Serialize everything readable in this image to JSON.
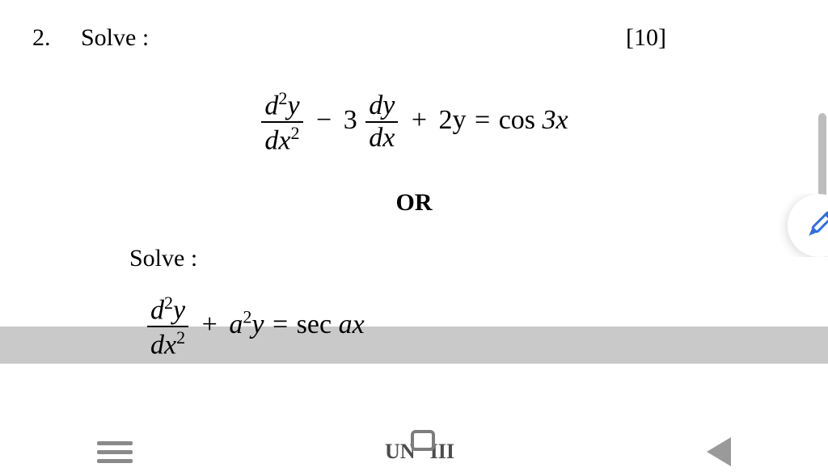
{
  "question": {
    "number": "2.",
    "prompt": "Solve :",
    "marks": "[10]"
  },
  "equation1": {
    "frac1_num_html": "d<span class='sup'>2</span>y",
    "frac1_den_html": "dx<span class='sup'>2</span>",
    "minus": "−",
    "coeff3": "3",
    "frac2_num": "dy",
    "frac2_den": "dx",
    "plus": "+",
    "term2y": "2y",
    "eq": "=",
    "rhs_html": "<span class='upright'>cos</span> 3x"
  },
  "or_label": "OR",
  "prompt2": "Solve :",
  "equation2": {
    "frac1_num_html": "d<span class='sup'>2</span>y",
    "frac1_den_html": "dx<span class='sup'>2</span>",
    "plus": "+",
    "term_html": "a<span class='sup'>2</span>y",
    "eq": "=",
    "rhs_html": "<span class='upright'>sec</span> ax"
  },
  "footer": {
    "unit_left": "UN",
    "unit_right": "III"
  },
  "colors": {
    "text": "#000000",
    "gray_band": "#c9c9c9",
    "icon_gray": "#8a8a8a",
    "pencil_blue": "#2f6fe4"
  }
}
